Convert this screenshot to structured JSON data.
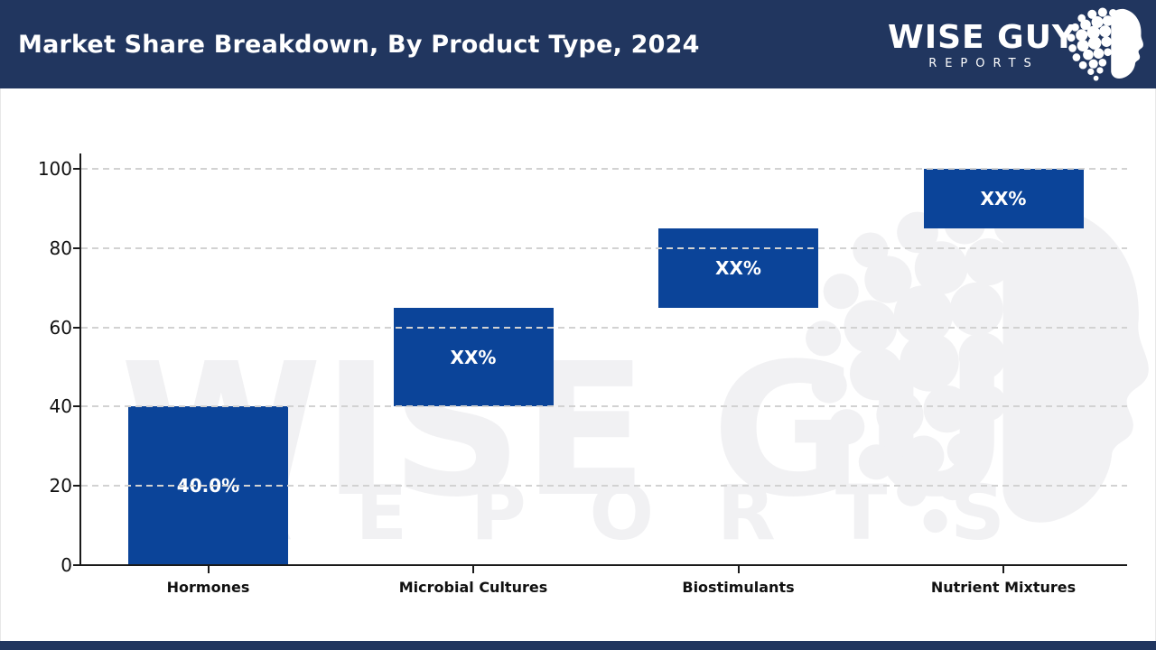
{
  "header": {
    "title": "Market Share Breakdown, By Product Type, 2024",
    "logo": {
      "brand_top": "WISE GUY",
      "brand_bottom": "REPORTS"
    }
  },
  "watermark": {
    "line1": "WISE GUY",
    "line2": "REPORTS"
  },
  "chart_data": {
    "type": "bar",
    "subtype": "floating-range bars (waterfall style)",
    "title": "Market Share Breakdown, By Product Type, 2024",
    "categories": [
      "Hormones",
      "Microbial Cultures",
      "Biostimulants",
      "Nutrient Mixtures"
    ],
    "series": [
      {
        "name": "Market share (%)",
        "ranges": [
          [
            0,
            40
          ],
          [
            40,
            65
          ],
          [
            65,
            85
          ],
          [
            85,
            100
          ]
        ],
        "labels": [
          "40.0%",
          "XX%",
          "XX%",
          "XX%"
        ]
      }
    ],
    "xlabel": "",
    "ylabel": "",
    "ylim": [
      0,
      100
    ],
    "yticks": [
      0,
      20,
      40,
      60,
      80,
      100
    ],
    "grid": "horizontal dashed, drawn over bars",
    "legend": "none",
    "colors": {
      "bar": "#0b4499",
      "bar_label": "#ffffff",
      "axis": "#1a1a1a",
      "gridline": "#d2d2d2",
      "tick_label": "#111111",
      "header_bg": "#21365f",
      "footer_bg": "#21365f",
      "watermark": "#f1f1f3"
    }
  }
}
